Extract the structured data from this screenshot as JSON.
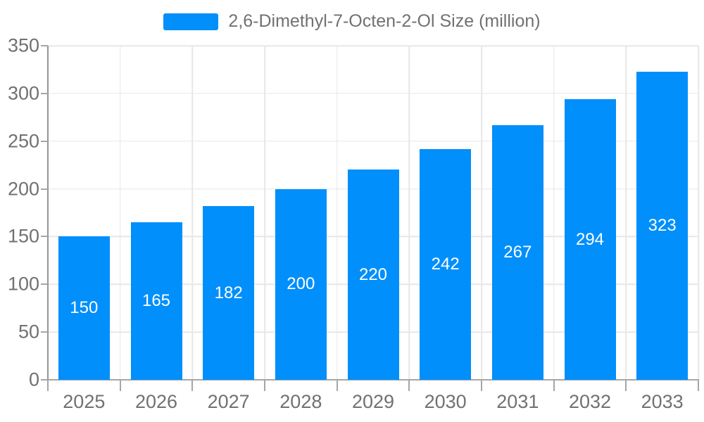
{
  "chart_data": {
    "type": "bar",
    "title": "2,6-Dimethyl-7-Octen-2-Ol Size (million)",
    "categories": [
      "2025",
      "2026",
      "2027",
      "2028",
      "2029",
      "2030",
      "2031",
      "2032",
      "2033"
    ],
    "series": [
      {
        "name": "2,6-Dimethyl-7-Octen-2-Ol Size (million)",
        "values": [
          150,
          165,
          182,
          200,
          220,
          242,
          267,
          294,
          323
        ]
      }
    ],
    "xlabel": "",
    "ylabel": "",
    "ylim": [
      0,
      350
    ],
    "yticks": [
      0,
      50,
      100,
      150,
      200,
      250,
      300,
      350
    ],
    "grid": true,
    "legend_position": "top-center",
    "data_labels_position": "inside-center",
    "colors": {
      "bar": "#008FFB",
      "data_label_text": "#ffffff",
      "axis_text": "#717171",
      "grid_line": "#e7e7e7",
      "axis_line": "#a6a6a6"
    }
  }
}
